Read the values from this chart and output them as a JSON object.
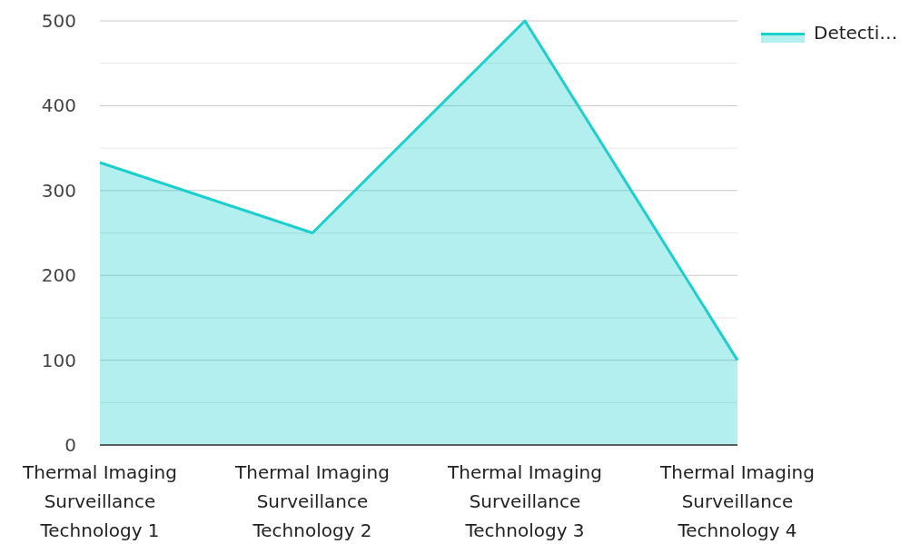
{
  "chart_data": {
    "type": "area",
    "categories": [
      "Thermal Imaging Surveillance Technology 1",
      "Thermal Imaging Surveillance Technology 2",
      "Thermal Imaging Surveillance Technology 3",
      "Thermal Imaging Surveillance Technology 4"
    ],
    "series": [
      {
        "name": "Detecti…",
        "color": "#1ccfcf",
        "values": [
          333,
          250,
          500,
          100
        ]
      }
    ],
    "ylim": [
      0,
      500
    ],
    "yticks": [
      0,
      {
        "value": 50,
        "label": null
      },
      100,
      {
        "value": 150,
        "label": null
      },
      200,
      {
        "value": 250,
        "label": null
      },
      300,
      {
        "value": 350,
        "label": null
      },
      400,
      {
        "value": 450,
        "label": null
      },
      500
    ],
    "grid": "y",
    "legend": "top right"
  }
}
